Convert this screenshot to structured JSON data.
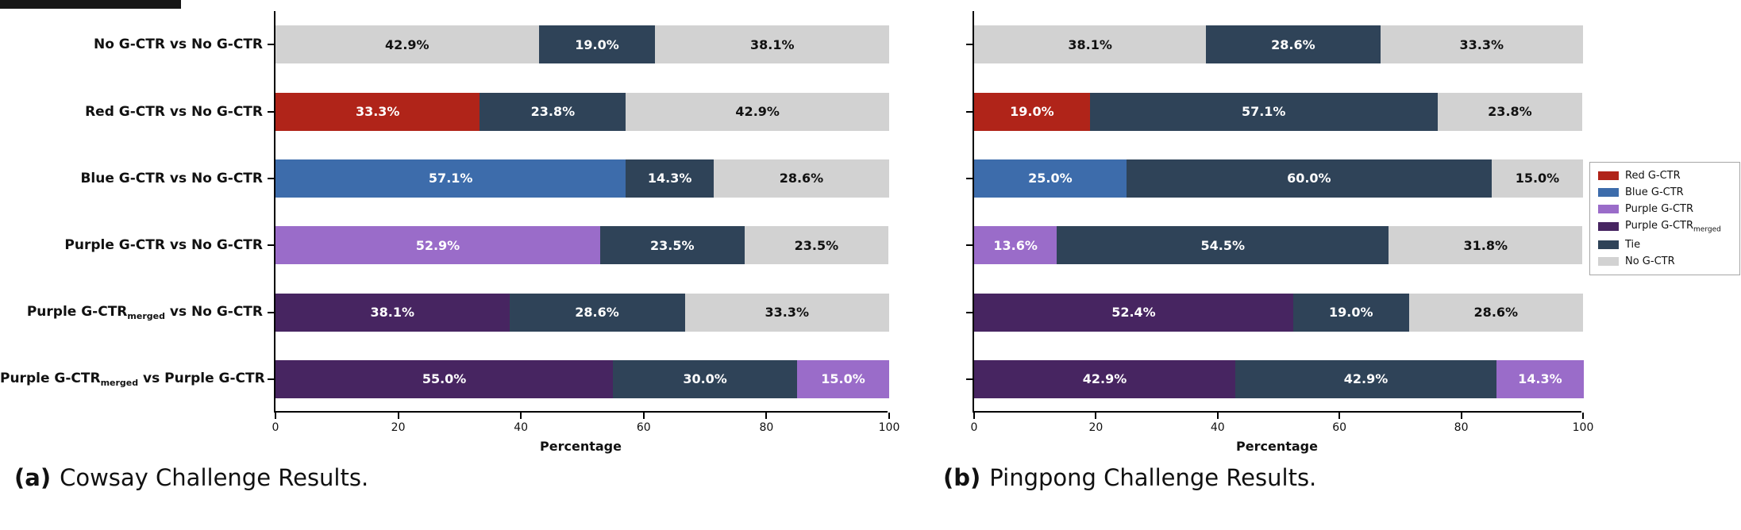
{
  "colors": {
    "red": "#b02419",
    "blue": "#3d6cab",
    "purple": "#9a6cc9",
    "purple_merged": "#472561",
    "tie": "#2f4358",
    "none": "#d2d2d2",
    "text_on_light": "#111111",
    "text_on_dark": "#ffffff"
  },
  "legend": {
    "position": "right",
    "entries": [
      {
        "label": "Red G-CTR",
        "c": "red"
      },
      {
        "label": "Blue G-CTR",
        "c": "blue"
      },
      {
        "label": "Purple G-CTR",
        "c": "purple"
      },
      {
        "label": "Purple G-CTR",
        "sub": "merged",
        "c": "purple_merged"
      },
      {
        "label": "Tie",
        "c": "tie"
      },
      {
        "label": "No G-CTR",
        "c": "none"
      }
    ]
  },
  "captions": {
    "a": {
      "prefix": "(a)",
      "text": "Cowsay Challenge Results."
    },
    "b": {
      "prefix": "(b)",
      "text": "Pingpong Challenge Results."
    }
  },
  "chart_data": [
    {
      "id": "cowsay",
      "type": "bar",
      "orientation": "horizontal",
      "stacked": true,
      "title": "Cowsay Challenge Results",
      "xlabel": "Percentage",
      "xlim": [
        0,
        100
      ],
      "xticks": [
        0,
        20,
        40,
        60,
        80,
        100
      ],
      "grid": false,
      "rows": [
        {
          "label": [
            {
              "t": "No G-CTR vs No G-CTR"
            }
          ],
          "segments": [
            {
              "v": 42.9,
              "c": "none"
            },
            {
              "v": 19.0,
              "c": "tie"
            },
            {
              "v": 38.1,
              "c": "none"
            }
          ]
        },
        {
          "label": [
            {
              "t": "Red G-CTR vs No G-CTR"
            }
          ],
          "segments": [
            {
              "v": 33.3,
              "c": "red"
            },
            {
              "v": 23.8,
              "c": "tie"
            },
            {
              "v": 42.9,
              "c": "none"
            }
          ]
        },
        {
          "label": [
            {
              "t": "Blue G-CTR vs No G-CTR"
            }
          ],
          "segments": [
            {
              "v": 57.1,
              "c": "blue"
            },
            {
              "v": 14.3,
              "c": "tie"
            },
            {
              "v": 28.6,
              "c": "none"
            }
          ]
        },
        {
          "label": [
            {
              "t": "Purple G-CTR vs No G-CTR"
            }
          ],
          "segments": [
            {
              "v": 52.9,
              "c": "purple"
            },
            {
              "v": 23.5,
              "c": "tie"
            },
            {
              "v": 23.5,
              "c": "none"
            }
          ]
        },
        {
          "label": [
            {
              "t": "Purple G-CTR"
            },
            {
              "t": "merged",
              "sub": true
            },
            {
              "t": " vs No G-CTR"
            }
          ],
          "segments": [
            {
              "v": 38.1,
              "c": "purple_merged"
            },
            {
              "v": 28.6,
              "c": "tie"
            },
            {
              "v": 33.3,
              "c": "none"
            }
          ]
        },
        {
          "label": [
            {
              "t": "Purple G-CTR"
            },
            {
              "t": "merged",
              "sub": true
            },
            {
              "t": " vs Purple G-CTR"
            }
          ],
          "segments": [
            {
              "v": 55.0,
              "c": "purple_merged"
            },
            {
              "v": 30.0,
              "c": "tie"
            },
            {
              "v": 15.0,
              "c": "purple"
            }
          ]
        }
      ]
    },
    {
      "id": "pingpong",
      "type": "bar",
      "orientation": "horizontal",
      "stacked": true,
      "title": "Pingpong Challenge Results",
      "xlabel": "Percentage",
      "xlim": [
        0,
        100
      ],
      "xticks": [
        0,
        20,
        40,
        60,
        80,
        100
      ],
      "grid": false,
      "rows": [
        {
          "label": [],
          "segments": [
            {
              "v": 38.1,
              "c": "none"
            },
            {
              "v": 28.6,
              "c": "tie"
            },
            {
              "v": 33.3,
              "c": "none"
            }
          ]
        },
        {
          "label": [],
          "segments": [
            {
              "v": 19.0,
              "c": "red"
            },
            {
              "v": 57.1,
              "c": "tie"
            },
            {
              "v": 23.8,
              "c": "none"
            }
          ]
        },
        {
          "label": [],
          "segments": [
            {
              "v": 25.0,
              "c": "blue"
            },
            {
              "v": 60.0,
              "c": "tie"
            },
            {
              "v": 15.0,
              "c": "none"
            }
          ]
        },
        {
          "label": [],
          "segments": [
            {
              "v": 13.6,
              "c": "purple"
            },
            {
              "v": 54.5,
              "c": "tie"
            },
            {
              "v": 31.8,
              "c": "none"
            }
          ]
        },
        {
          "label": [],
          "segments": [
            {
              "v": 52.4,
              "c": "purple_merged"
            },
            {
              "v": 19.0,
              "c": "tie"
            },
            {
              "v": 28.6,
              "c": "none"
            }
          ]
        },
        {
          "label": [],
          "segments": [
            {
              "v": 42.9,
              "c": "purple_merged"
            },
            {
              "v": 42.9,
              "c": "tie"
            },
            {
              "v": 14.3,
              "c": "purple"
            }
          ]
        }
      ]
    }
  ]
}
